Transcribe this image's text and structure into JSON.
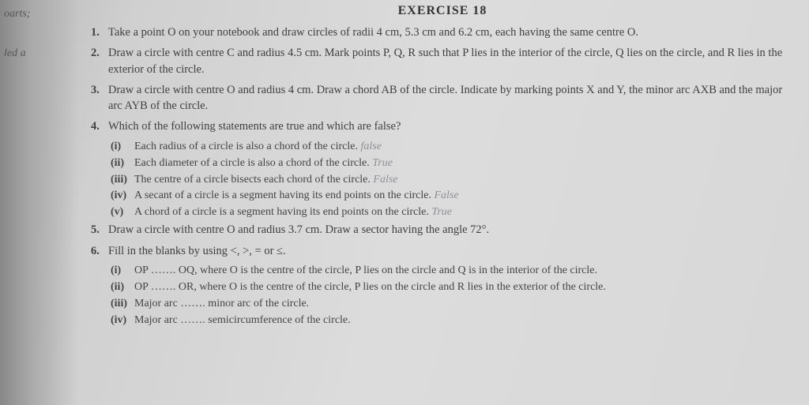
{
  "edge": {
    "text1": "oarts;",
    "text2": "led a"
  },
  "title": "EXERCISE 18",
  "items": [
    {
      "num": "1.",
      "text": "Take a point O on your notebook and draw circles of radii 4 cm, 5.3 cm and 6.2 cm, each having the same centre O."
    },
    {
      "num": "2.",
      "text": "Draw a circle with centre C and radius 4.5 cm. Mark points P, Q, R such that P lies in the interior of the circle, Q lies on the circle, and R lies in the exterior of the circle."
    },
    {
      "num": "3.",
      "text": "Draw a circle with centre O and radius 4 cm. Draw a chord AB of the circle. Indicate by marking points X and Y, the minor arc AXB and the major arc AYB of the circle."
    },
    {
      "num": "4.",
      "text": "Which of the following statements are true and which are false?"
    }
  ],
  "subitems4": [
    {
      "num": "(i)",
      "text": "Each radius of a circle is also a chord of the circle."
    },
    {
      "num": "(ii)",
      "text": "Each diameter of a circle is also a chord of the circle."
    },
    {
      "num": "(iii)",
      "text": "The centre of a circle bisects each chord of the circle."
    },
    {
      "num": "(iv)",
      "text": "A secant of a circle is a segment having its end points on the circle."
    },
    {
      "num": "(v)",
      "text": "A chord of a circle is a segment having its end points on the circle."
    }
  ],
  "item5": {
    "num": "5.",
    "text": "Draw a circle with centre O and radius 3.7 cm. Draw a sector having the angle 72°."
  },
  "item6": {
    "num": "6.",
    "text": "Fill in the blanks by using <, >, = or ≤."
  },
  "subitems6": [
    {
      "num": "(i)",
      "text": "OP ……. OQ, where O is the centre of the circle, P lies on the circle and Q is in the interior of the circle."
    },
    {
      "num": "(ii)",
      "text": "OP ……. OR, where O is the centre of the circle, P lies on the circle and R lies in the exterior of the circle."
    },
    {
      "num": "(iii)",
      "text": "Major arc ……. minor arc of the circle."
    },
    {
      "num": "(iv)",
      "text": "Major arc ……. semicircumference of the circle."
    }
  ],
  "handwritten": {
    "h1": "false",
    "h2": "True",
    "h3": "False",
    "h4": "False",
    "h5": "True"
  }
}
